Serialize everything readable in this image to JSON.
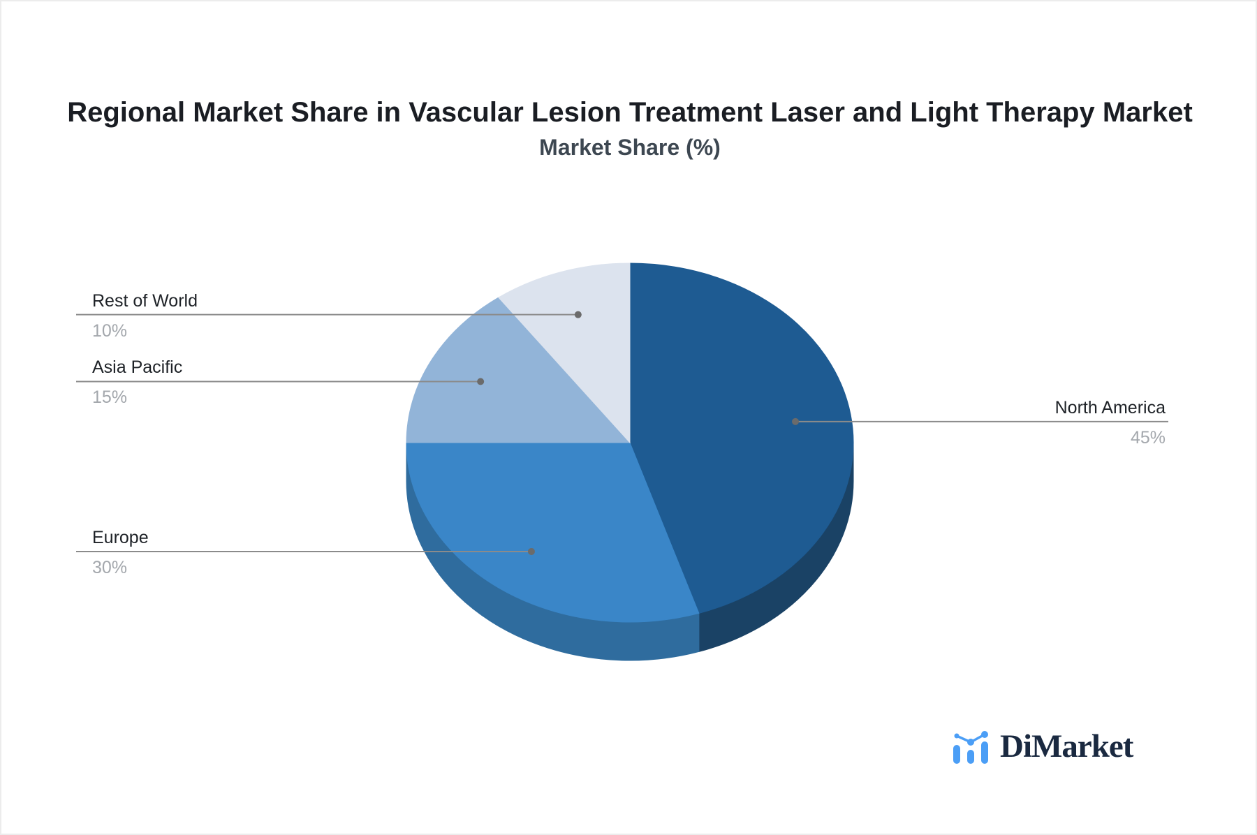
{
  "chart_data": {
    "type": "pie",
    "title": "Regional Market Share in Vascular Lesion Treatment Laser and Light Therapy Market",
    "subtitle": "Market Share (%)",
    "unit": "%",
    "start_angle_deg": 0,
    "direction": "clockwise",
    "effect": "3d",
    "legend": "none",
    "categories": [
      "North America",
      "Europe",
      "Asia Pacific",
      "Rest of World"
    ],
    "values": [
      45,
      30,
      15,
      10
    ],
    "slices": [
      {
        "name": "North America",
        "value": 45,
        "pct_label": "45%",
        "color": "#1e5b92",
        "side_color": "#1a4265",
        "label_side": "right"
      },
      {
        "name": "Europe",
        "value": 30,
        "pct_label": "30%",
        "color": "#3a86c8",
        "side_color": "#2f6c9e",
        "label_side": "left"
      },
      {
        "name": "Asia Pacific",
        "value": 15,
        "pct_label": "15%",
        "color": "#92b4d8",
        "side_color": "#7d9cbd",
        "label_side": "left"
      },
      {
        "name": "Rest of World",
        "value": 10,
        "pct_label": "10%",
        "color": "#dce3ee",
        "side_color": "#b9c2d1",
        "label_side": "left"
      }
    ]
  },
  "connectors": {
    "line_color": "#8b8b8b",
    "dot_color": "#6b6b6b"
  },
  "logo": {
    "text": "DiMarket",
    "icon": "bar-chart-logo-icon",
    "text_color": "#1a2940",
    "icon_color": "#4b9ef6"
  }
}
